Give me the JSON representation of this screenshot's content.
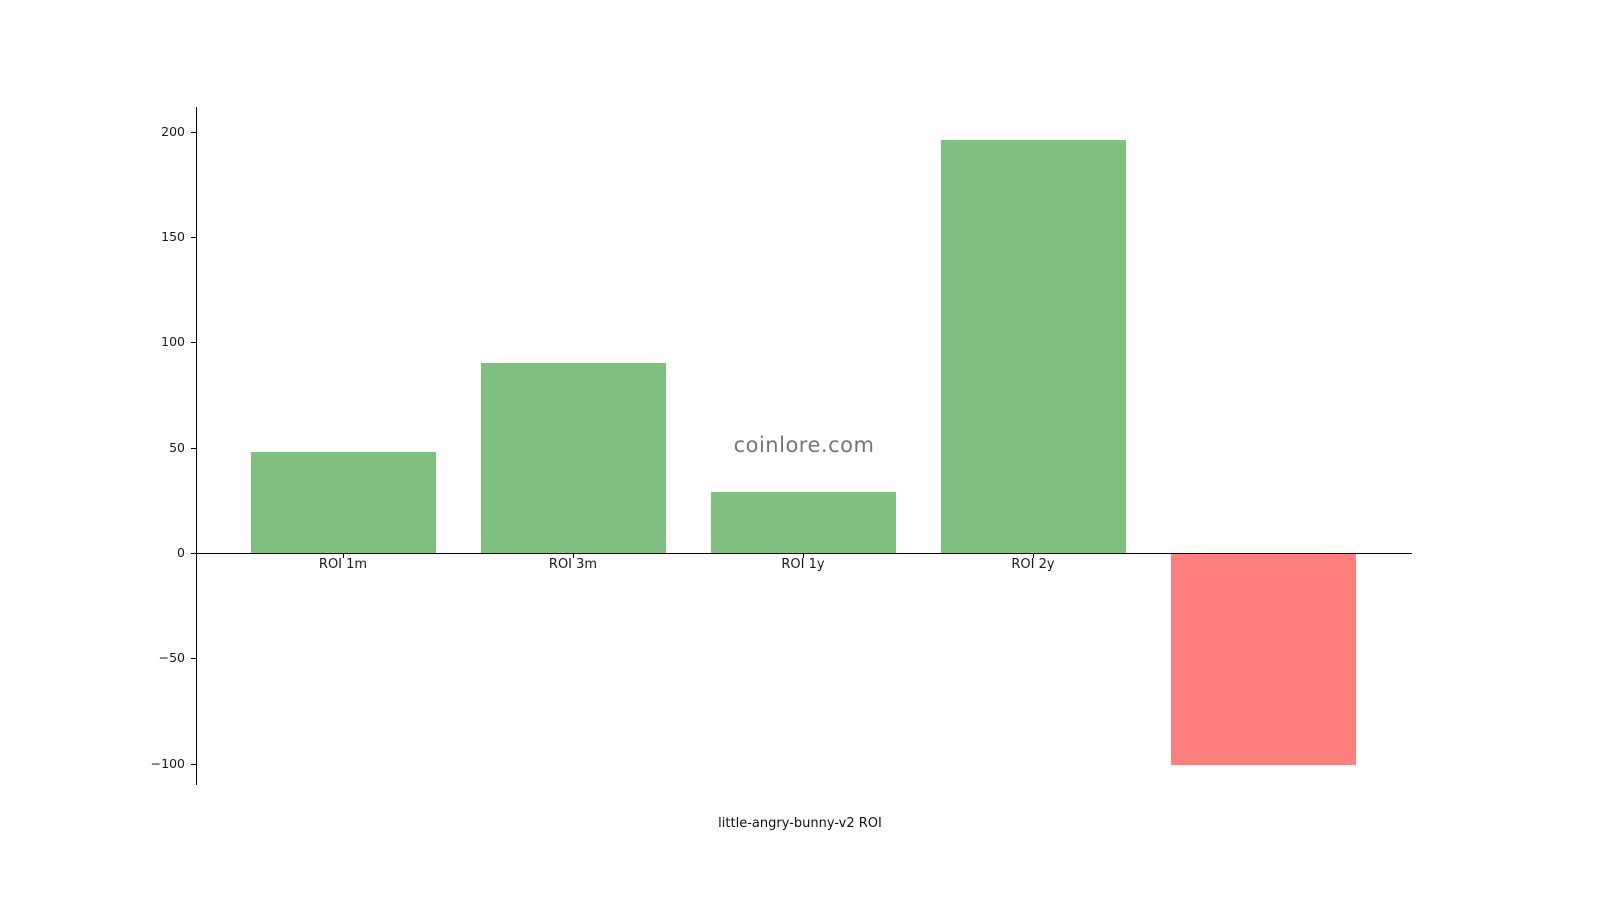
{
  "watermark": {
    "text": "coinlore.com",
    "color": "#757575"
  },
  "chart_data": {
    "type": "bar",
    "title": "little-angry-bunny-v2 ROI",
    "xlabel": "",
    "ylabel": "",
    "categories": [
      "ROI 1m",
      "ROI 3m",
      "ROI 1y",
      "ROI 2y",
      ""
    ],
    "values": [
      48,
      90,
      29,
      196,
      -100
    ],
    "yticks": [
      200,
      150,
      100,
      50,
      0,
      -50,
      -100
    ],
    "ylim": [
      -110,
      212
    ],
    "positive_color": "#7fbf7f",
    "negative_color": "#ff7f7f",
    "axis_color": "#000000",
    "tick_label_color": "#1a1a1a",
    "grid": false,
    "legend": false
  }
}
